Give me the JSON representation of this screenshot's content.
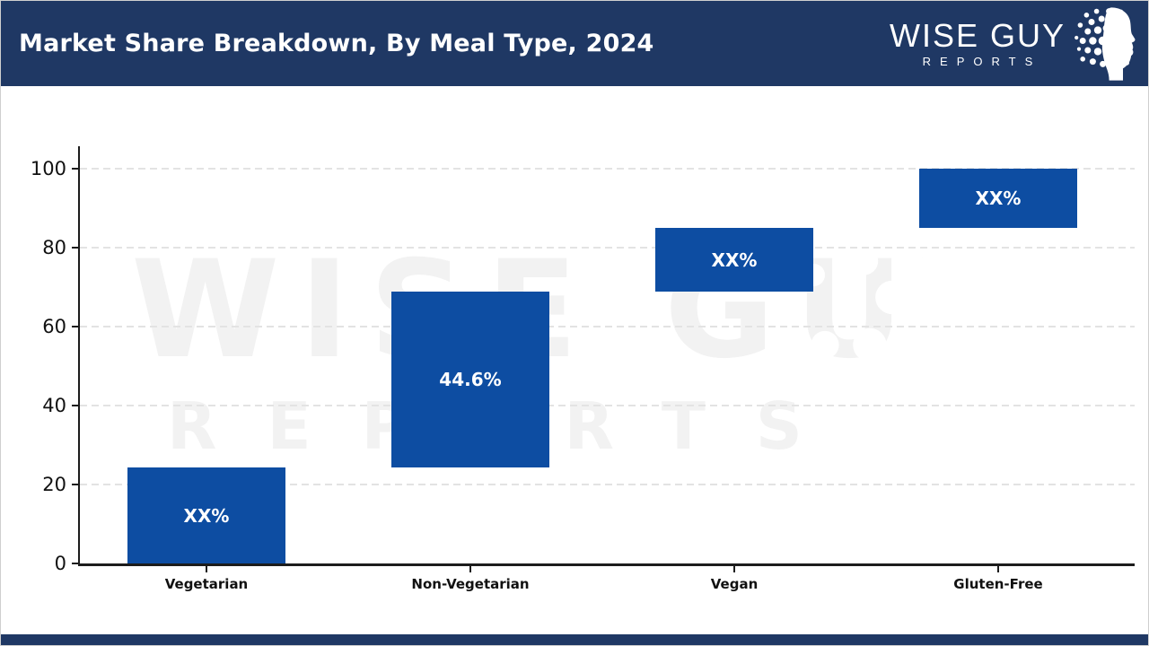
{
  "header": {
    "title": "Market Share Breakdown, By Meal Type, 2024",
    "background_color": "#1f3864",
    "logo": {
      "wordmark": "WISE GUY",
      "subtext": "REPORTS"
    }
  },
  "watermark": {
    "wordmark": "WISE GUY",
    "subtext": "REPORTS"
  },
  "chart_data": {
    "type": "bar",
    "subtype": "floating-waterfall",
    "title": "Market Share Breakdown, By Meal Type, 2024",
    "xlabel": "",
    "ylabel": "",
    "categories": [
      "Vegetarian",
      "Non-Vegetarian",
      "Vegan",
      "Gluten-Free"
    ],
    "segments": [
      {
        "category": "Vegetarian",
        "start": 0,
        "end": 24.3,
        "label": "XX%"
      },
      {
        "category": "Non-Vegetarian",
        "start": 24.3,
        "end": 68.9,
        "label": "44.6%"
      },
      {
        "category": "Vegan",
        "start": 68.9,
        "end": 84.9,
        "label": "XX%"
      },
      {
        "category": "Gluten-Free",
        "start": 84.9,
        "end": 100,
        "label": "XX%"
      }
    ],
    "values": [
      24.3,
      44.6,
      16.0,
      15.1
    ],
    "y_ticks": [
      0,
      20,
      40,
      60,
      80,
      100
    ],
    "ylim": [
      0,
      106
    ],
    "bar_color": "#0d4da2",
    "bar_label_color": "#ffffff",
    "grid": "horizontal-dashed",
    "legend": "none"
  },
  "footer": {
    "background_color": "#1f3864"
  }
}
